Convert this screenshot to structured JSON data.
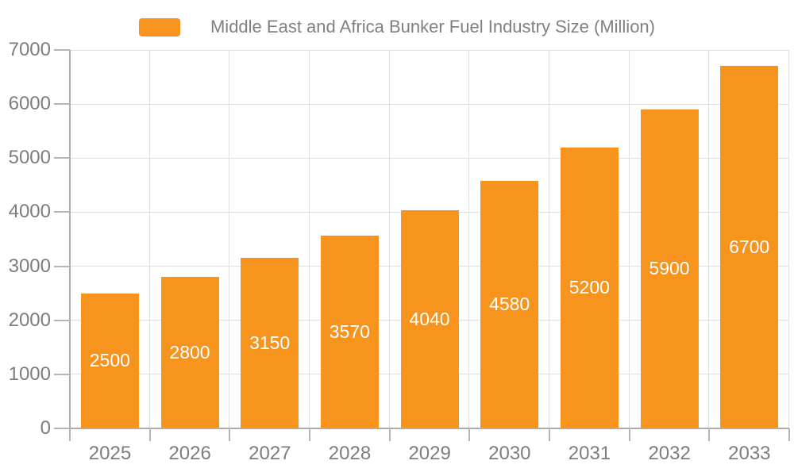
{
  "chart_data": {
    "type": "bar",
    "title": "Middle East and Africa Bunker Fuel Industry Size (Million)",
    "categories": [
      "2025",
      "2026",
      "2027",
      "2028",
      "2029",
      "2030",
      "2031",
      "2032",
      "2033"
    ],
    "values": [
      2500,
      2800,
      3150,
      3570,
      4040,
      4580,
      5200,
      5900,
      6700
    ],
    "series": [
      {
        "name": "Middle East and Africa Bunker Fuel Industry Size (Million)",
        "values": [
          2500,
          2800,
          3150,
          3570,
          4040,
          4580,
          5200,
          5900,
          6700
        ]
      }
    ],
    "xlabel": "",
    "ylabel": "",
    "ylim": [
      0,
      7000
    ],
    "yticks": [
      0,
      1000,
      2000,
      3000,
      4000,
      5000,
      6000,
      7000
    ],
    "grid": true,
    "bar_labels_visible": true,
    "legend_position": "top",
    "colors": {
      "bar": "#F7941E",
      "bar_label": "#FFFFFF",
      "grid": "#E0E0E0",
      "axis": "#ACACAC",
      "tick": "#B5B5B5",
      "axis_label": "#7D7D7D",
      "legend_text": "#808080",
      "background": "#FFFFFF"
    }
  }
}
